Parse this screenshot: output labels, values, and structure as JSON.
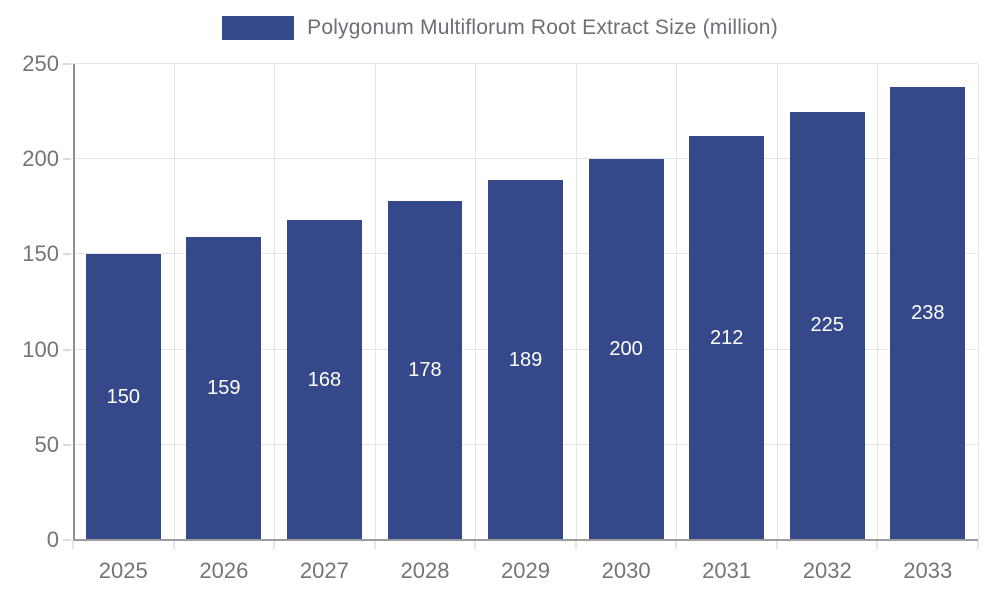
{
  "chart_data": {
    "type": "bar",
    "title": "Polygonum Multiflorum Root Extract Size (million)",
    "categories": [
      "2025",
      "2026",
      "2027",
      "2028",
      "2029",
      "2030",
      "2031",
      "2032",
      "2033"
    ],
    "values": [
      150,
      159,
      168,
      178,
      189,
      200,
      212,
      225,
      238
    ],
    "xlabel": "",
    "ylabel": "",
    "ylim": [
      0,
      250
    ],
    "yticks": [
      0,
      50,
      100,
      150,
      200,
      250
    ],
    "grid": true,
    "legend_position": "top",
    "colors": {
      "bar": "#35488a",
      "bar_value_label": "#ffffff",
      "axis_text": "#757575",
      "legend_text": "#6e6e78",
      "gridline": "#e4e4e4",
      "axis_line": "#9c9c9c"
    }
  }
}
